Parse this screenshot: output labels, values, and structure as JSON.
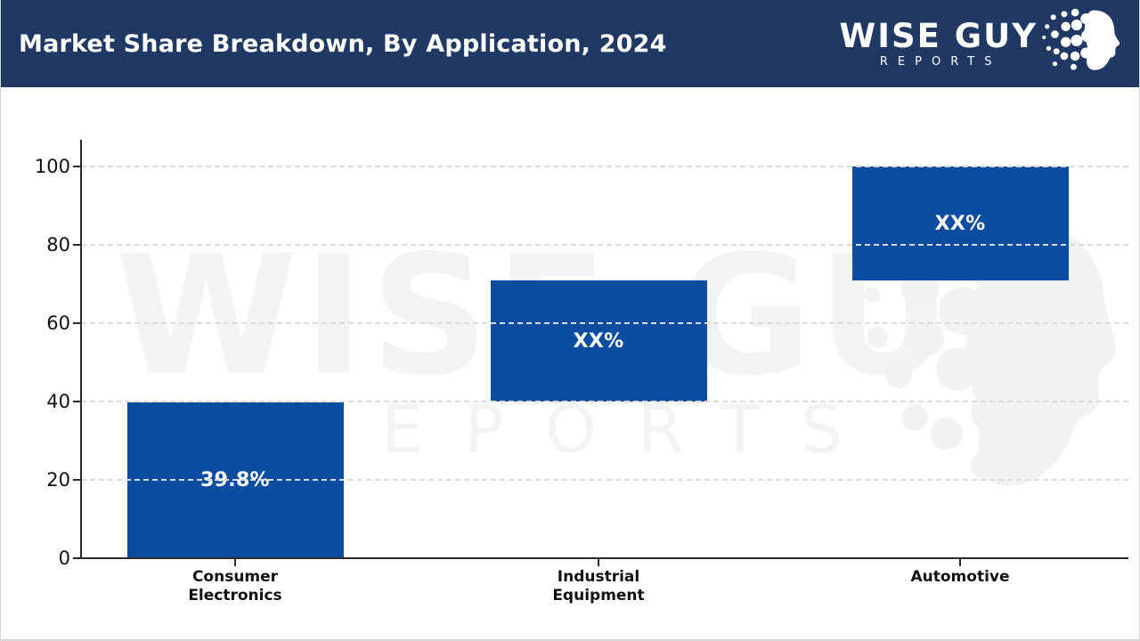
{
  "header": {
    "title": "Market Share Breakdown, By Application, 2024",
    "logo": {
      "line1": "WISE GUY",
      "line2": "REPORTS"
    },
    "bg_color": "#1f3864"
  },
  "watermark": {
    "line1": "WISE GUY",
    "line2": "REPORTS"
  },
  "chart_data": {
    "type": "bar",
    "subtype": "floating-segment-waterfall",
    "title": "Market Share Breakdown, By Application, 2024",
    "categories": [
      "Consumer Electronics",
      "Industrial Equipment",
      "Automotive"
    ],
    "bars": [
      {
        "category": "Consumer Electronics",
        "start": 0,
        "end": 39.8,
        "label": "39.8%"
      },
      {
        "category": "Industrial Equipment",
        "start": 40,
        "end": 71,
        "label": "XX%"
      },
      {
        "category": "Automotive",
        "start": 71,
        "end": 100,
        "label": "XX%"
      }
    ],
    "x_labels": [
      {
        "line1": "Consumer",
        "line2": "Electronics"
      },
      {
        "line1": "Industrial",
        "line2": "Equipment"
      },
      {
        "line1": "Automotive",
        "line2": ""
      }
    ],
    "y_ticks": [
      100,
      80,
      60,
      40,
      20,
      0
    ],
    "y_tick_labels": [
      "100",
      "80",
      "60",
      "40",
      "20",
      "0"
    ],
    "ylim": [
      0,
      105
    ],
    "xlabel": "",
    "ylabel": "",
    "legend": "none",
    "grid": {
      "axis": "y",
      "style": "dashed"
    },
    "bar_color": "#0d4da1",
    "bar_label_color": "#ffffff"
  },
  "colors": {
    "header_bg": "#1f3864",
    "bar_blue": "#0d4da1",
    "watermark_gray": "#f3f3f3",
    "gridline_gray": "#dcdcdc",
    "axis_dark": "#2a2a2a",
    "text_dark": "#111111",
    "page_border": "#d6d6d6"
  }
}
